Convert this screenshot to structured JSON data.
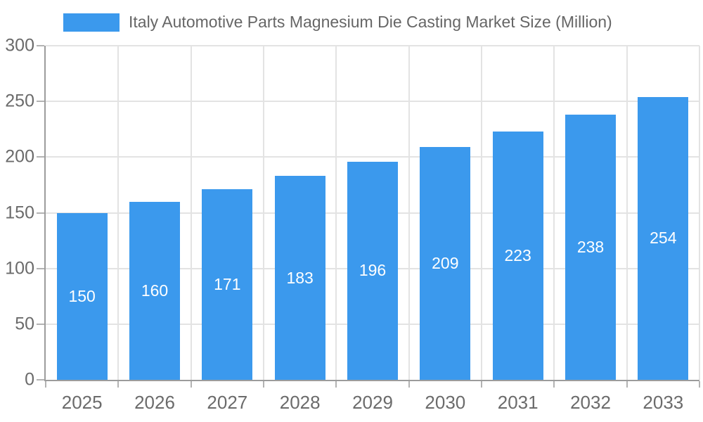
{
  "chart_data": {
    "type": "bar",
    "title": "Italy Automotive Parts Magnesium Die Casting Market Size (Million)",
    "categories": [
      "2025",
      "2026",
      "2027",
      "2028",
      "2029",
      "2030",
      "2031",
      "2032",
      "2033"
    ],
    "values": [
      150,
      160,
      171,
      183,
      196,
      209,
      223,
      238,
      254
    ],
    "ylabel": "",
    "xlabel": "",
    "ylim": [
      0,
      300
    ],
    "ytick_step": 50,
    "ytick_labels": [
      "0",
      "50",
      "100",
      "150",
      "200",
      "250",
      "300"
    ],
    "grid": true,
    "legend_position": "top-left",
    "colors": {
      "bar": "#3B99ED",
      "value_label": "#ffffff",
      "axis_text": "#6b6b6b",
      "legend_text": "#666666",
      "grid_line": "#e3e3e3",
      "axis_line": "#9c9c9c",
      "tick_mark": "#b3b3b3"
    }
  }
}
